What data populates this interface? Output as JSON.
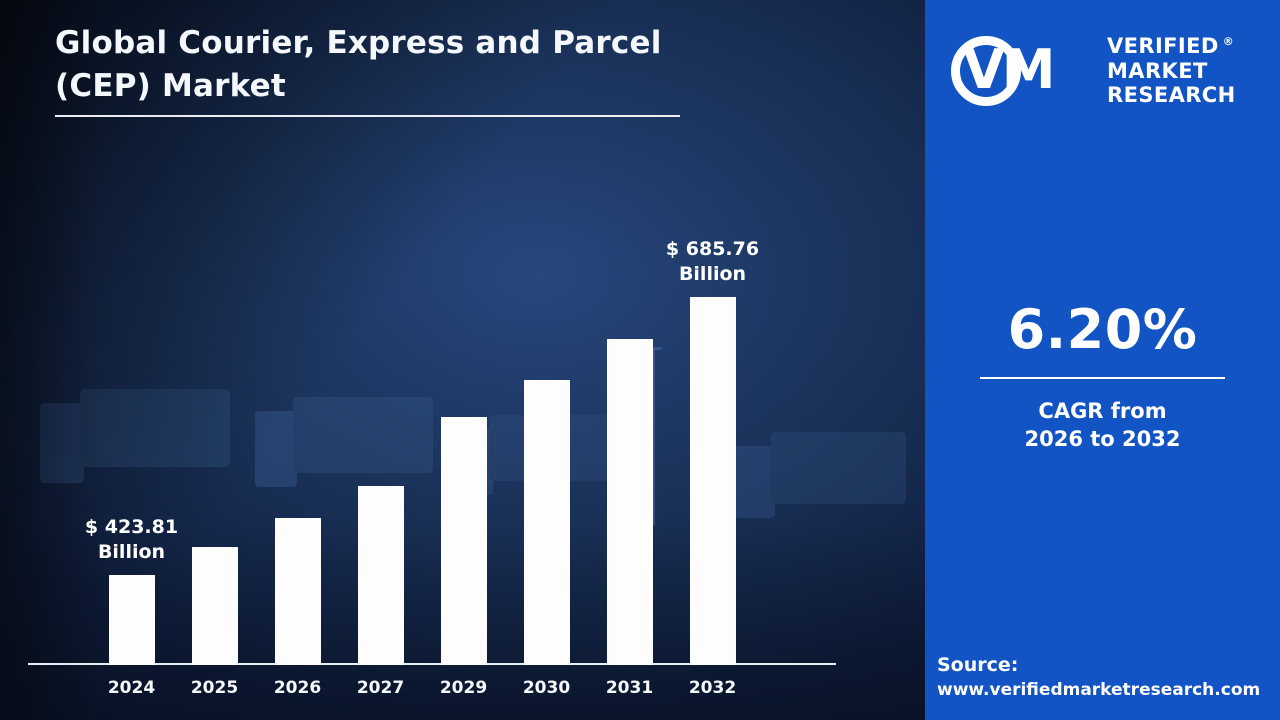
{
  "title": "Global Courier, Express and Parcel (CEP) Market",
  "colors": {
    "panel_blue": "#1254c4",
    "bar_white": "#ffffff",
    "background_dark": "#0a1630"
  },
  "chart_data": {
    "type": "bar",
    "title": "Global Courier, Express and Parcel (CEP) Market",
    "unit": "USD Billion",
    "categories": [
      "2024",
      "2025",
      "2026",
      "2027",
      "2029",
      "2030",
      "2031",
      "2032"
    ],
    "values": [
      423.81,
      450.09,
      477.99,
      507.63,
      572.52,
      608.02,
      645.72,
      685.76
    ],
    "labeled_points": [
      {
        "index": 0,
        "lines": [
          "$ 423.81",
          "Billion"
        ]
      },
      {
        "index": 7,
        "lines": [
          "$ 685.76",
          "Billion"
        ]
      }
    ],
    "xlabel": "",
    "ylabel": "",
    "legend": false,
    "grid": false
  },
  "sidebar": {
    "brand": {
      "monogram": "VM",
      "lines": [
        "VERIFIED",
        "MARKET",
        "RESEARCH"
      ],
      "registered": "®"
    },
    "cagr": {
      "value": "6.20%",
      "caption_line1": "CAGR from",
      "caption_line2": "2026 to 2032"
    },
    "source": {
      "label": "Source:",
      "url": "www.verifiedmarketresearch.com"
    }
  }
}
